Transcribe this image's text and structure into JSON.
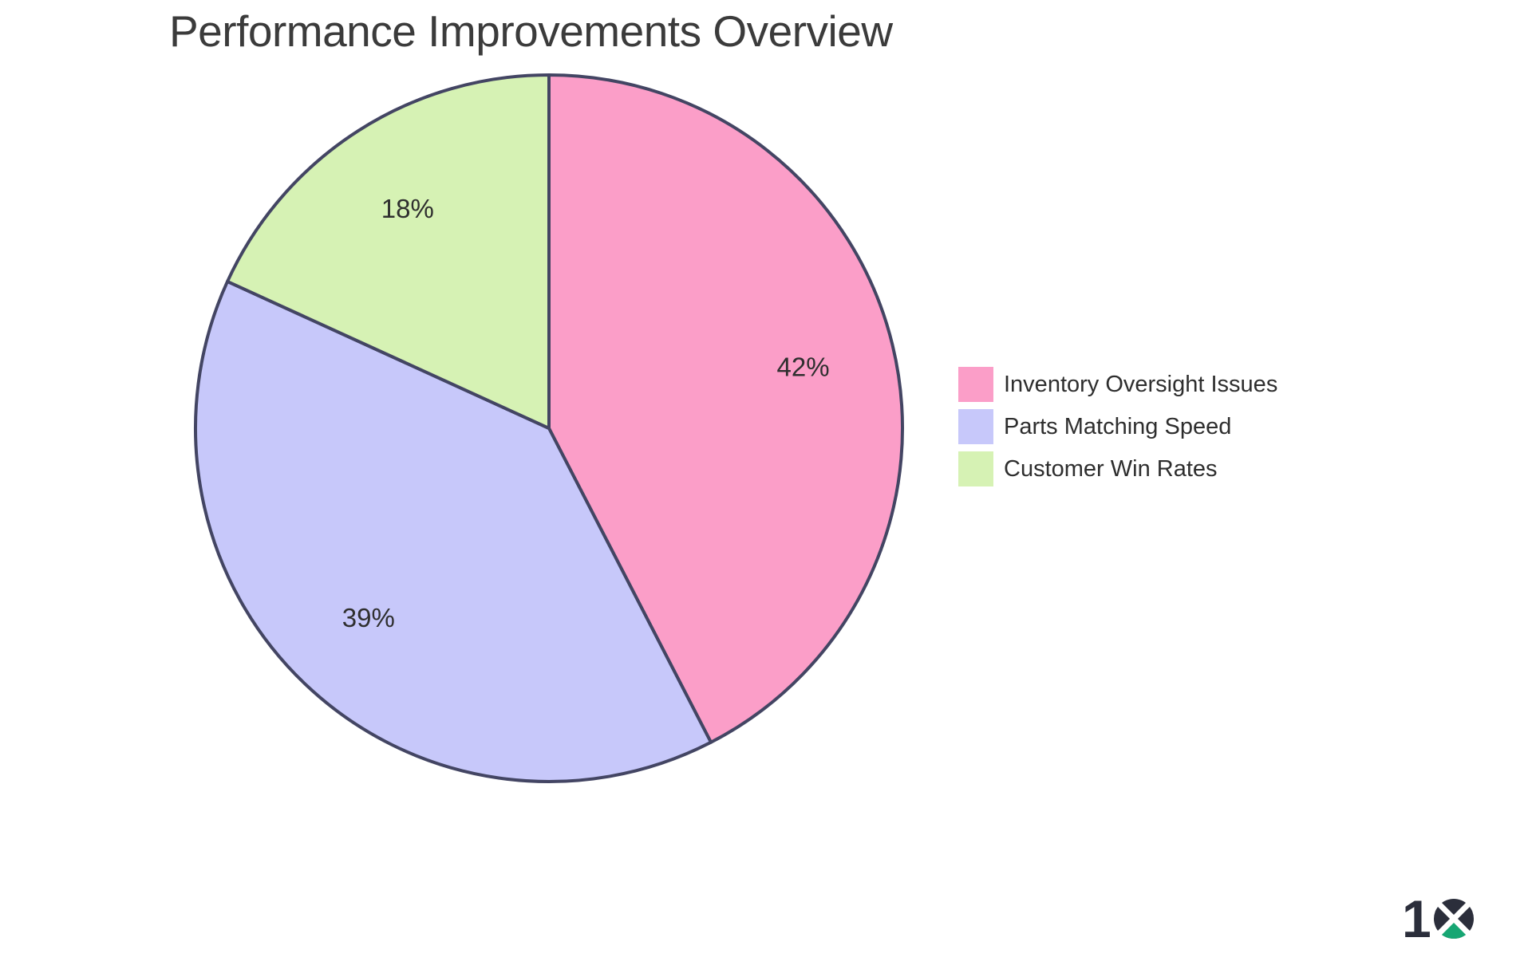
{
  "page": {
    "background_color": "#FFFFFF"
  },
  "chart_data": {
    "type": "pie",
    "title": "Performance Improvements Overview",
    "title_color": "#3B3B3B",
    "slices": [
      {
        "label": "Inventory Oversight Issues",
        "value": 42,
        "percent_label": "42%",
        "color": "#FB9EC8"
      },
      {
        "label": "Parts Matching Speed",
        "value": 39,
        "percent_label": "39%",
        "color": "#C7C8FA"
      },
      {
        "label": "Customer Win Rates",
        "value": 18,
        "percent_label": "18%",
        "color": "#D6F2B4"
      }
    ],
    "start_angle_deg": 0,
    "direction": "clockwise",
    "slice_border_color": "#434563",
    "slice_border_width": 4,
    "percent_label_color": "#2F2F2F",
    "label_radius_ratio": 0.74,
    "legend_position": "right",
    "legend_text_color": "#2E2E2E",
    "grid": "off"
  },
  "logo": {
    "text": "1",
    "dark_color": "#2B2E3B",
    "accent_color": "#17A673",
    "cross_color": "#FFFFFF"
  }
}
